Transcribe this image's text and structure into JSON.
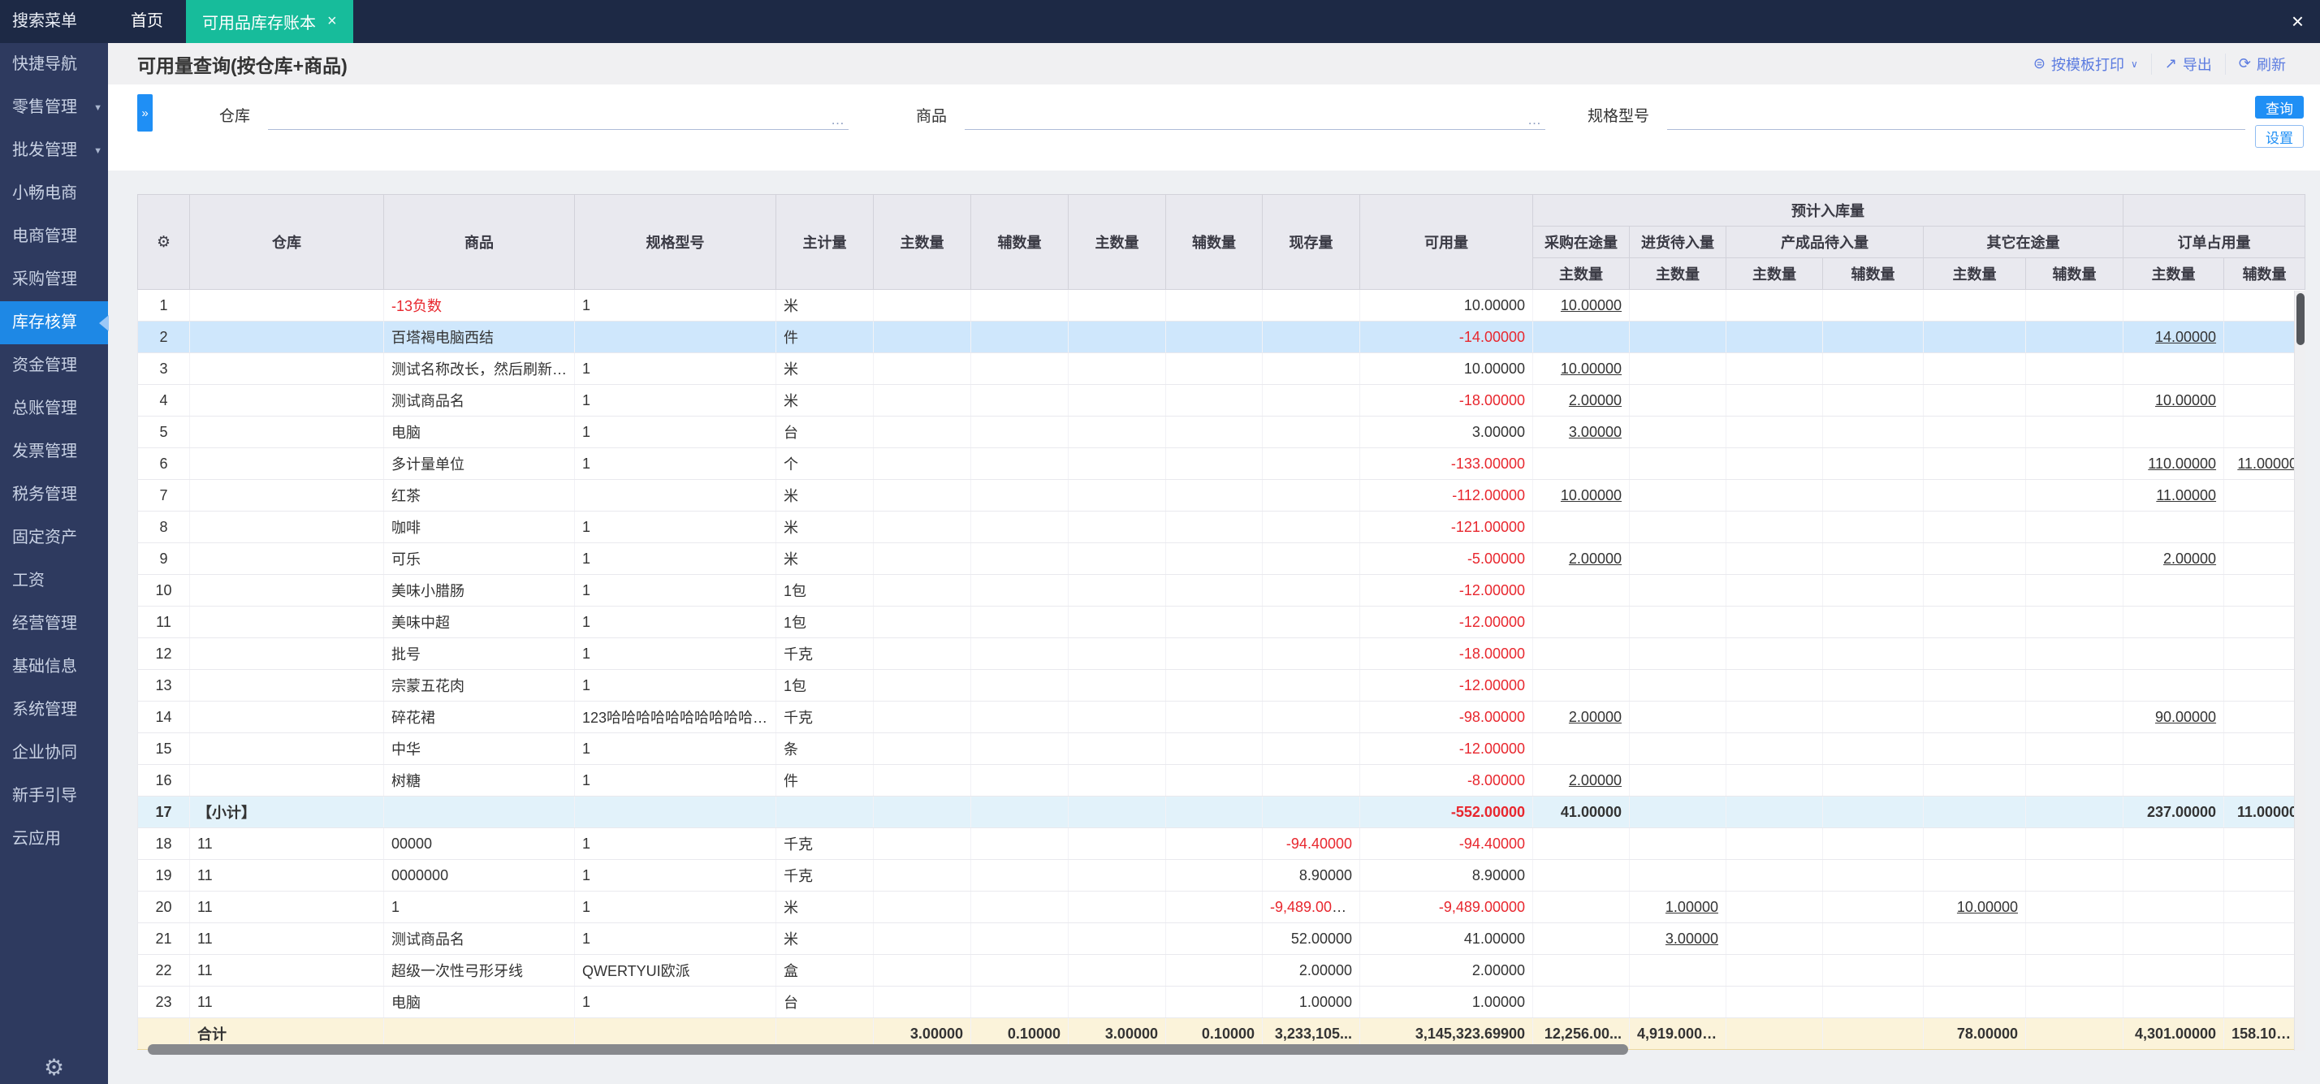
{
  "icons": {
    "gear": "⚙",
    "close": "×",
    "collapse": "»",
    "caret_down": "▼",
    "tool_caret": "∨",
    "print": "⊜",
    "export": "↗",
    "refresh": "⟳",
    "ellipsis": "…"
  },
  "colors": {
    "sidebar_bg": "#2e3a5f",
    "tabbar_bg": "#1d2945",
    "active_menu": "#1e88e5",
    "active_tab": "#17bc9b",
    "primary_button": "#1f8ff5",
    "negative_red": "#e8272e",
    "selected_row": "#cfe7fc",
    "subtotal_row": "#e2f2fa",
    "total_row": "#fbf3da"
  },
  "sidebar": {
    "search": "搜索菜单",
    "items": [
      {
        "label": "快捷导航"
      },
      {
        "label": "零售管理",
        "caret": true
      },
      {
        "label": "批发管理",
        "caret": true
      },
      {
        "label": "小畅电商"
      },
      {
        "label": "电商管理"
      },
      {
        "label": "采购管理"
      },
      {
        "label": "库存核算",
        "active": true
      },
      {
        "label": "资金管理"
      },
      {
        "label": "总账管理"
      },
      {
        "label": "发票管理"
      },
      {
        "label": "税务管理"
      },
      {
        "label": "固定资产"
      },
      {
        "label": "工资"
      },
      {
        "label": "经营管理"
      },
      {
        "label": "基础信息"
      },
      {
        "label": "系统管理"
      },
      {
        "label": "企业协同"
      },
      {
        "label": "新手引导"
      },
      {
        "label": "云应用"
      }
    ]
  },
  "tabs": {
    "home": "首页",
    "active": "可用品库存账本"
  },
  "header": {
    "title": "可用量查询(按仓库+商品)",
    "tools": {
      "print": "按模板打印",
      "export": "导出",
      "refresh": "刷新"
    }
  },
  "filters": {
    "warehouse_label": "仓库",
    "product_label": "商品",
    "spec_label": "规格型号",
    "query_button": "查询",
    "settings_button": "设置"
  },
  "table": {
    "headers": {
      "warehouse": "仓库",
      "product": "商品",
      "spec": "规格型号",
      "unit": "主计量",
      "main_qty": "主数量",
      "aux_qty": "辅数量",
      "main_qty2": "主数量",
      "aux_qty2": "辅数量",
      "stock": "现存量",
      "available": "可用量",
      "expected_group": "预计入库量",
      "purchase_transit": "采购在途量",
      "incoming_pending": "进货待入量",
      "finished_pending": "产成品待入量",
      "other_transit": "其它在途量",
      "order_group": "订单占用量",
      "sub_main": "主数量",
      "sub_aux": "辅数量"
    },
    "column_keys": [
      "seq",
      "warehouse",
      "product",
      "spec",
      "unit",
      "main_qty",
      "aux_qty",
      "main_qty2",
      "aux_qty2",
      "stock",
      "available",
      "purchase_transit",
      "incoming_pending",
      "finished_main",
      "finished_aux",
      "other_main",
      "other_aux",
      "order_main",
      "order_aux"
    ],
    "column_align": [
      "c",
      "l",
      "l",
      "l",
      "l",
      "r",
      "r",
      "r",
      "r",
      "r",
      "r",
      "r",
      "r",
      "r",
      "r",
      "r",
      "r",
      "r",
      "r"
    ],
    "rows": [
      {
        "cells": [
          "1",
          "",
          {
            "t": "-13负数",
            "red": true
          },
          "1",
          "米",
          "",
          "",
          "",
          "",
          "",
          "10.00000",
          {
            "t": "10.00000",
            "link": true
          },
          "",
          "",
          "",
          "",
          "",
          "",
          ""
        ]
      },
      {
        "selected": true,
        "cells": [
          "2",
          "",
          "百塔褐电脑西结",
          "",
          "件",
          "",
          "",
          "",
          "",
          "",
          {
            "t": "-14.00000",
            "red": true
          },
          "",
          "",
          "",
          "",
          "",
          "",
          {
            "t": "14.00000",
            "link": true
          },
          ""
        ]
      },
      {
        "cells": [
          "3",
          "",
          "测试名称改长，然后刷新有没...",
          "1",
          "米",
          "",
          "",
          "",
          "",
          "",
          "10.00000",
          {
            "t": "10.00000",
            "link": true
          },
          "",
          "",
          "",
          "",
          "",
          "",
          ""
        ]
      },
      {
        "cells": [
          "4",
          "",
          "测试商品名",
          "1",
          "米",
          "",
          "",
          "",
          "",
          "",
          {
            "t": "-18.00000",
            "red": true
          },
          {
            "t": "2.00000",
            "link": true
          },
          "",
          "",
          "",
          "",
          "",
          {
            "t": "10.00000",
            "link": true
          },
          ""
        ]
      },
      {
        "cells": [
          "5",
          "",
          "电脑",
          "1",
          "台",
          "",
          "",
          "",
          "",
          "",
          "3.00000",
          {
            "t": "3.00000",
            "link": true
          },
          "",
          "",
          "",
          "",
          "",
          "",
          ""
        ]
      },
      {
        "cells": [
          "6",
          "",
          "多计量单位",
          "1",
          "个",
          "",
          "",
          "",
          "",
          "",
          {
            "t": "-133.00000",
            "red": true
          },
          "",
          "",
          "",
          "",
          "",
          "",
          {
            "t": "110.00000",
            "link": true
          },
          {
            "t": "11.00000",
            "link": true
          }
        ]
      },
      {
        "cells": [
          "7",
          "",
          "红茶",
          "",
          "米",
          "",
          "",
          "",
          "",
          "",
          {
            "t": "-112.00000",
            "red": true
          },
          {
            "t": "10.00000",
            "link": true
          },
          "",
          "",
          "",
          "",
          "",
          {
            "t": "11.00000",
            "link": true
          },
          ""
        ]
      },
      {
        "cells": [
          "8",
          "",
          "咖啡",
          "1",
          "米",
          "",
          "",
          "",
          "",
          "",
          {
            "t": "-121.00000",
            "red": true
          },
          "",
          "",
          "",
          "",
          "",
          "",
          "",
          ""
        ]
      },
      {
        "cells": [
          "9",
          "",
          "可乐",
          "1",
          "米",
          "",
          "",
          "",
          "",
          "",
          {
            "t": "-5.00000",
            "red": true
          },
          {
            "t": "2.00000",
            "link": true
          },
          "",
          "",
          "",
          "",
          "",
          {
            "t": "2.00000",
            "link": true
          },
          ""
        ]
      },
      {
        "cells": [
          "10",
          "",
          "美味小腊肠",
          "1",
          "1包",
          "",
          "",
          "",
          "",
          "",
          {
            "t": "-12.00000",
            "red": true
          },
          "",
          "",
          "",
          "",
          "",
          "",
          "",
          ""
        ]
      },
      {
        "cells": [
          "11",
          "",
          "美味中超",
          "1",
          "1包",
          "",
          "",
          "",
          "",
          "",
          {
            "t": "-12.00000",
            "red": true
          },
          "",
          "",
          "",
          "",
          "",
          "",
          "",
          ""
        ]
      },
      {
        "cells": [
          "12",
          "",
          "批号",
          "1",
          "千克",
          "",
          "",
          "",
          "",
          "",
          {
            "t": "-18.00000",
            "red": true
          },
          "",
          "",
          "",
          "",
          "",
          "",
          "",
          ""
        ]
      },
      {
        "cells": [
          "13",
          "",
          "宗蒙五花肉",
          "1",
          "1包",
          "",
          "",
          "",
          "",
          "",
          {
            "t": "-12.00000",
            "red": true
          },
          "",
          "",
          "",
          "",
          "",
          "",
          "",
          ""
        ]
      },
      {
        "cells": [
          "14",
          "",
          "碎花裙",
          "123哈哈哈哈哈哈哈哈哈哈哈...",
          "千克",
          "",
          "",
          "",
          "",
          "",
          {
            "t": "-98.00000",
            "red": true
          },
          {
            "t": "2.00000",
            "link": true
          },
          "",
          "",
          "",
          "",
          "",
          {
            "t": "90.00000",
            "link": true
          },
          ""
        ]
      },
      {
        "cells": [
          "15",
          "",
          "中华",
          "1",
          "条",
          "",
          "",
          "",
          "",
          "",
          {
            "t": "-12.00000",
            "red": true
          },
          "",
          "",
          "",
          "",
          "",
          "",
          "",
          ""
        ]
      },
      {
        "cells": [
          "16",
          "",
          "树糖",
          "1",
          "件",
          "",
          "",
          "",
          "",
          "",
          {
            "t": "-8.00000",
            "red": true
          },
          {
            "t": "2.00000",
            "link": true
          },
          "",
          "",
          "",
          "",
          "",
          "",
          ""
        ]
      },
      {
        "kind": "subtotal",
        "cells": [
          "17",
          "【小计】",
          "",
          "",
          "",
          "",
          "",
          "",
          "",
          "",
          {
            "t": "-552.00000",
            "red": true
          },
          "41.00000",
          "",
          "",
          "",
          "",
          "",
          "237.00000",
          "11.00000"
        ]
      },
      {
        "cells": [
          "18",
          "11",
          "00000",
          "1",
          "千克",
          "",
          "",
          "",
          "",
          {
            "t": "-94.40000",
            "red": true
          },
          {
            "t": "-94.40000",
            "red": true
          },
          "",
          "",
          "",
          "",
          "",
          "",
          "",
          ""
        ]
      },
      {
        "cells": [
          "19",
          "11",
          "0000000",
          "1",
          "千克",
          "",
          "",
          "",
          "",
          "8.90000",
          "8.90000",
          "",
          "",
          "",
          "",
          "",
          "",
          "",
          ""
        ]
      },
      {
        "cells": [
          "20",
          "11",
          "1",
          "1",
          "米",
          "",
          "",
          "",
          "",
          {
            "t": "-9,489.000...",
            "red": true
          },
          {
            "t": "-9,489.00000",
            "red": true
          },
          "",
          {
            "t": "1.00000",
            "link": true
          },
          "",
          "",
          {
            "t": "10.00000",
            "link": true
          },
          "",
          "",
          ""
        ]
      },
      {
        "cells": [
          "21",
          "11",
          "测试商品名",
          "1",
          "米",
          "",
          "",
          "",
          "",
          "52.00000",
          "41.00000",
          "",
          {
            "t": "3.00000",
            "link": true
          },
          "",
          "",
          "",
          "",
          "",
          ""
        ]
      },
      {
        "cells": [
          "22",
          "11",
          "超级一次性弓形牙线",
          "QWERTYUI欧派",
          "盒",
          "",
          "",
          "",
          "",
          "2.00000",
          "2.00000",
          "",
          "",
          "",
          "",
          "",
          "",
          "",
          ""
        ]
      },
      {
        "cells": [
          "23",
          "11",
          "电脑",
          "1",
          "台",
          "",
          "",
          "",
          "",
          "1.00000",
          "1.00000",
          "",
          "",
          "",
          "",
          "",
          "",
          "",
          ""
        ]
      }
    ],
    "total": {
      "cells": [
        "",
        "合计",
        "",
        "",
        "",
        "3.00000",
        "0.10000",
        "3.00000",
        "0.10000",
        "3,233,105...",
        "3,145,323.69900",
        "12,256.00...",
        "4,919.00000",
        "",
        "",
        "78.00000",
        "",
        "4,301.00000",
        "158.10000"
      ]
    }
  }
}
